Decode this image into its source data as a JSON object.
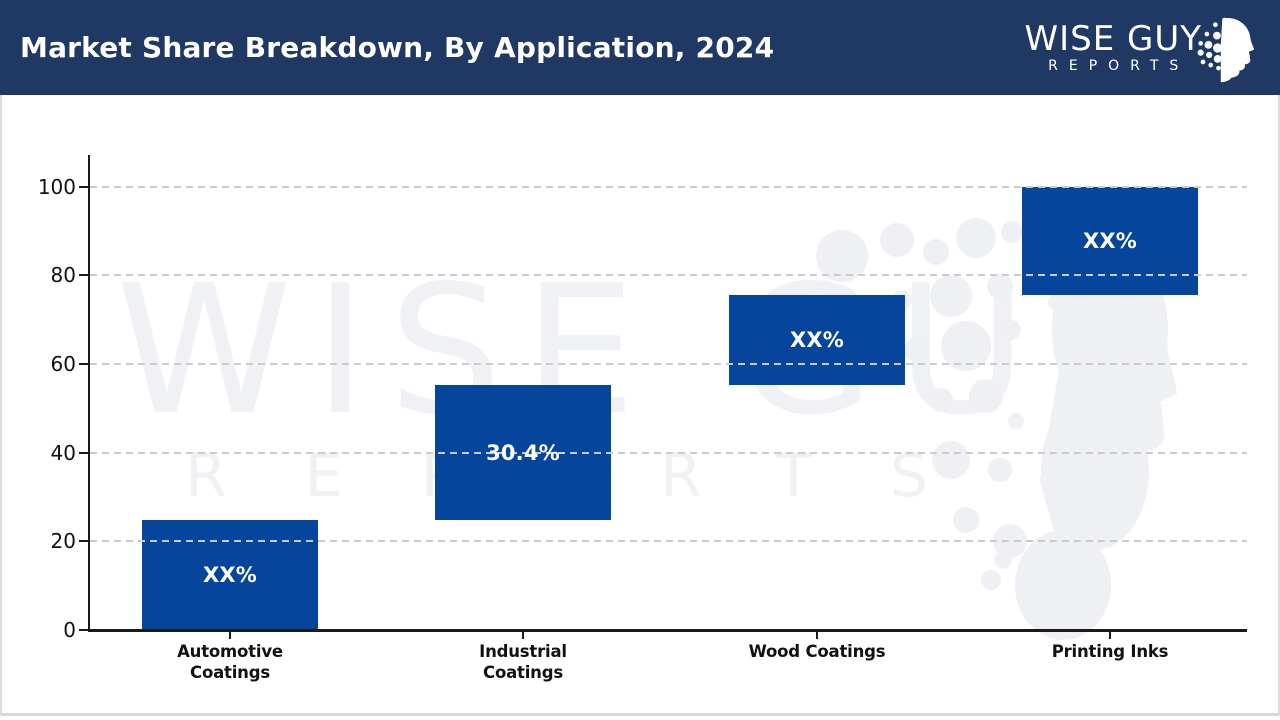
{
  "header": {
    "title": "Market Share Breakdown, By Application, 2024",
    "logo": {
      "line1": "WISE GUY",
      "line2": "REPORTS"
    }
  },
  "watermark": {
    "line1": "WISE GUY",
    "line2": "REPORTS"
  },
  "chart_data": {
    "type": "bar",
    "subtype": "waterfall",
    "title": "Market Share Breakdown, By Application, 2024",
    "categories": [
      "Automotive Coatings",
      "Industrial Coatings",
      "Wood Coatings",
      "Printing Inks"
    ],
    "category_lines": [
      [
        "Automotive",
        "Coatings"
      ],
      [
        "Industrial",
        "Coatings"
      ],
      [
        "Wood Coatings"
      ],
      [
        "Printing Inks"
      ]
    ],
    "segments": [
      {
        "category": "Automotive Coatings",
        "start": 0,
        "end": 24.8,
        "label": "XX%"
      },
      {
        "category": "Industrial Coatings",
        "start": 24.8,
        "end": 55.2,
        "label": "30.4%"
      },
      {
        "category": "Wood Coatings",
        "start": 55.2,
        "end": 75.6,
        "label": "XX%"
      },
      {
        "category": "Printing Inks",
        "start": 75.6,
        "end": 100,
        "label": "XX%"
      }
    ],
    "xlabel": "",
    "ylabel": "",
    "ylim": [
      0,
      100
    ],
    "yticks": [
      0,
      20,
      40,
      60,
      80,
      100
    ],
    "grid": "horizontal-dashed",
    "legend": "none",
    "colors": {
      "bar": "#05459c",
      "bar_label": "#ffffff",
      "grid": "#cbcbcb",
      "axis": "#1a1a1a",
      "tick_label": "#111111",
      "header_bg": "#1f3864",
      "watermark": "#f0f1f4"
    }
  }
}
